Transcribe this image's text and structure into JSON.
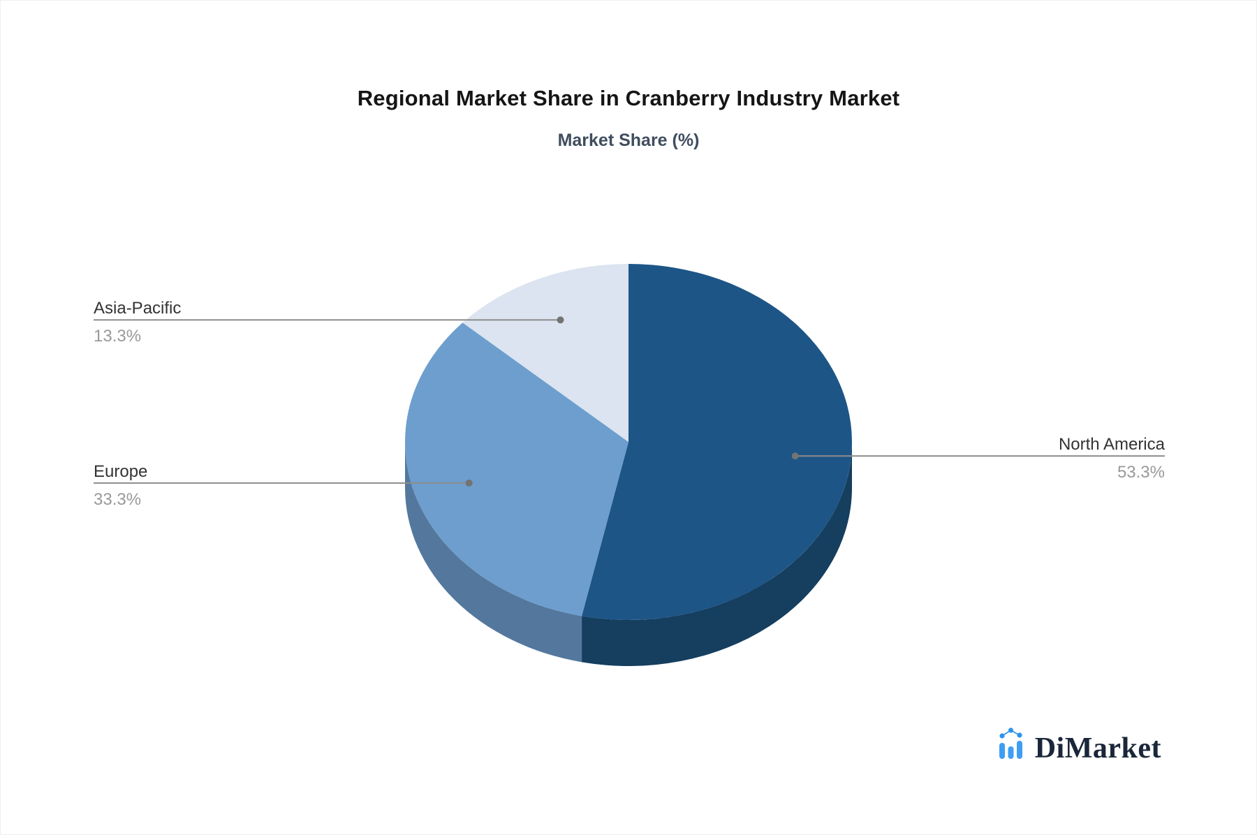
{
  "chart_data": {
    "type": "pie",
    "title": "Regional Market Share in Cranberry Industry Market",
    "subtitle": "Market Share (%)",
    "unit": "%",
    "start_angle_deg": 0,
    "direction": "clockwise",
    "effect_3d": true,
    "legend": "none",
    "slices": [
      {
        "label": "North America",
        "value": 53.3,
        "display": "53.3%",
        "color": "#1d5586",
        "side_color": "#153e5f",
        "label_side": "right"
      },
      {
        "label": "Europe",
        "value": 33.3,
        "display": "33.3%",
        "color": "#6d9ecd",
        "side_color": "#54789d",
        "label_side": "left"
      },
      {
        "label": "Asia-Pacific",
        "value": 13.3,
        "display": "13.3%",
        "color": "#dbe4f0",
        "side_color": "#b9c6da",
        "label_side": "left"
      }
    ],
    "label_style": {
      "name_color": "#333333",
      "value_color": "#999999",
      "leader_line_color": "#8c8c8c",
      "leader_dot_color": "#737373"
    }
  },
  "branding": {
    "logo_text": "DiMarket",
    "logo_icon": "bar-line-chart-icon",
    "logo_text_color": "#1a2639",
    "logo_bar_color": "#3f9ef2",
    "logo_dot_color": "#2f93ee"
  }
}
